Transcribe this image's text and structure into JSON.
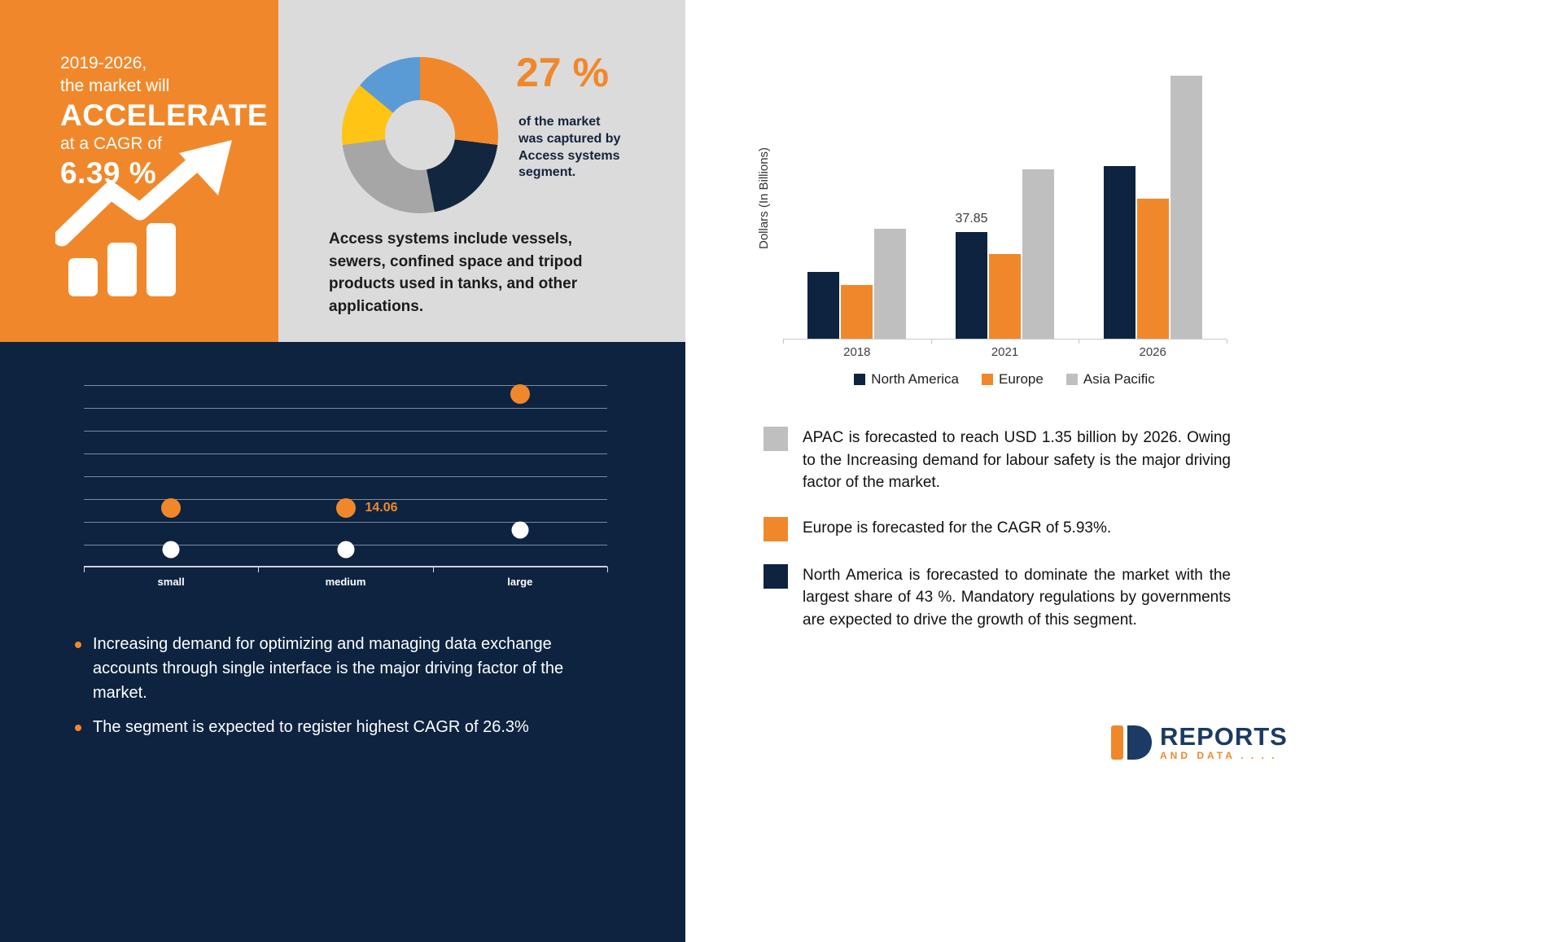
{
  "colors": {
    "orange": "#F0882B",
    "navy": "#0D2340",
    "panel_gray": "#DBDBDB",
    "bar_gray": "#BFBFBF",
    "donut_gray": "#A6A6A6",
    "yellow": "#FFC414",
    "blue": "#5B9BD5"
  },
  "orange_panel": {
    "period": "2019-2026,",
    "line2": "the market will",
    "headline": "ACCELERATE",
    "cagr_label": "at a CAGR of",
    "cagr_value": "6.39 %"
  },
  "gray_panel": {
    "share_value": "27 %",
    "share_caption": "of the market was captured by Access systems segment.",
    "description": "Access systems include vessels, sewers, confined space and tripod products used in tanks, and other applications."
  },
  "navy_panel": {
    "bullets": [
      "Increasing demand for optimizing and managing data exchange accounts through single interface is the major driving factor of the market.",
      "The segment is expected to register highest CAGR of 26.3%"
    ]
  },
  "right_panel": {
    "insights": [
      {
        "swatch_color": "#BFBFBF",
        "text": "APAC is forecasted to reach USD 1.35 billion by 2026. Owing to the Increasing demand for labour safety is the major driving factor of the market."
      },
      {
        "swatch_color": "#F0882B",
        "text": "Europe is forecasted for the CAGR of 5.93%."
      },
      {
        "swatch_color": "#0D2340",
        "text": "North America is forecasted to dominate the market with the largest share of 43 %. Mandatory regulations by governments are expected to drive the growth of this segment."
      }
    ]
  },
  "logo": {
    "brand": "REPORTS",
    "sub_brand": "AND DATA",
    "dots": " . . . ."
  },
  "chart_data": [
    {
      "id": "access-share-donut",
      "type": "pie",
      "title": "27 % of the market was captured by Access systems segment.",
      "slices": [
        {
          "label": "Access systems",
          "value": 27,
          "color": "#F0882B"
        },
        {
          "label": "segment-navy",
          "value": 20,
          "color": "#12263F"
        },
        {
          "label": "segment-gray",
          "value": 26,
          "color": "#A6A6A6"
        },
        {
          "label": "segment-yellow",
          "value": 13,
          "color": "#FFC414"
        },
        {
          "label": "segment-blue",
          "value": 14,
          "color": "#5B9BD5"
        }
      ]
    },
    {
      "id": "regional-market-bars",
      "type": "bar",
      "categories": [
        "2018",
        "2021",
        "2026"
      ],
      "series": [
        {
          "name": "North America",
          "color": "#0D2340",
          "values": [
            23.5,
            37.85,
            61
          ]
        },
        {
          "name": "Europe",
          "color": "#F0882B",
          "values": [
            19,
            30,
            49.5
          ]
        },
        {
          "name": "Asia Pacific",
          "color": "#BFBFBF",
          "values": [
            39,
            60,
            93
          ]
        }
      ],
      "ylabel": "Dollars (In Billions)",
      "ylim": [
        0,
        100
      ],
      "grid": false,
      "legend_position": "bottom",
      "data_labels": [
        {
          "category": "2021",
          "series": "North America",
          "text": "37.85"
        }
      ]
    },
    {
      "id": "segment-size-dots",
      "type": "scatter",
      "categories": [
        "small",
        "medium",
        "large"
      ],
      "series": [
        {
          "name": "orange-series",
          "color": "#F0882B",
          "values": [
            32,
            32,
            95
          ]
        },
        {
          "name": "white-series",
          "color": "#FFFFFF",
          "values": [
            9,
            9,
            20
          ]
        }
      ],
      "value_axis": "relative height percent of plot, gridlines only (no numeric axis shown)",
      "gridlines": 9,
      "data_labels": [
        {
          "category": "medium",
          "series": "orange-series",
          "text": "14.06"
        }
      ]
    }
  ]
}
